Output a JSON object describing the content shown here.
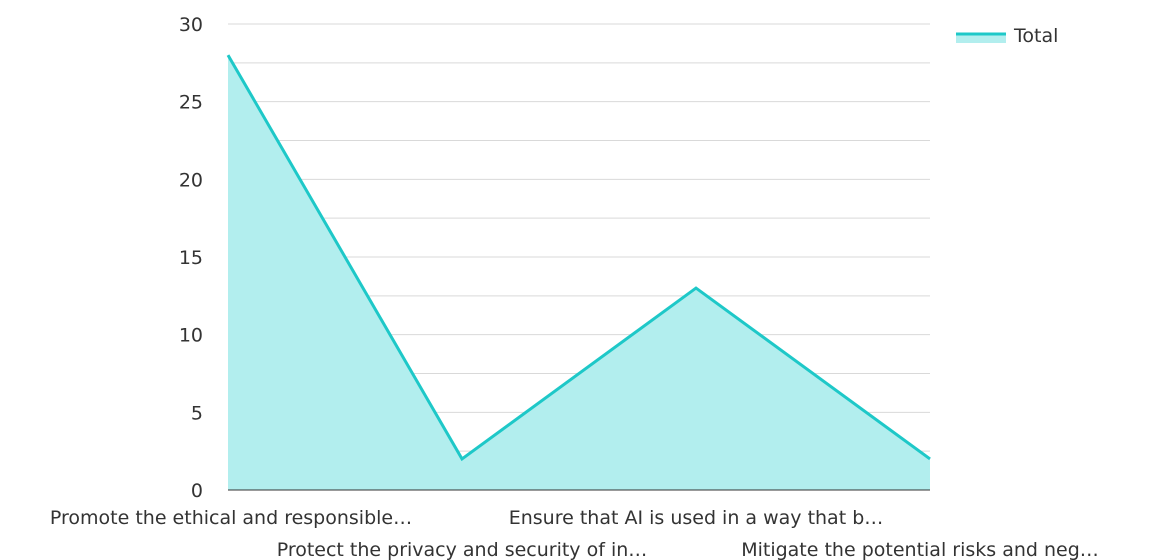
{
  "chart_data": {
    "type": "area",
    "categories": [
      "Promote the ethical and responsible…",
      "Protect the privacy and security of in…",
      "Ensure that AI is used in a way that b…",
      "Mitigate the potential risks and neg…"
    ],
    "series": [
      {
        "name": "Total",
        "values": [
          28,
          2,
          13,
          2
        ]
      }
    ],
    "title": "",
    "xlabel": "",
    "ylabel": "",
    "ylim": [
      0,
      30
    ],
    "yticks": [
      0,
      5,
      10,
      15,
      20,
      25,
      30
    ],
    "grid": true,
    "legend": "top-right",
    "colors": {
      "line": "#1ec8c8",
      "fill": "#b2eeee",
      "grid": "#d9d9d9",
      "axis": "#333333"
    }
  }
}
